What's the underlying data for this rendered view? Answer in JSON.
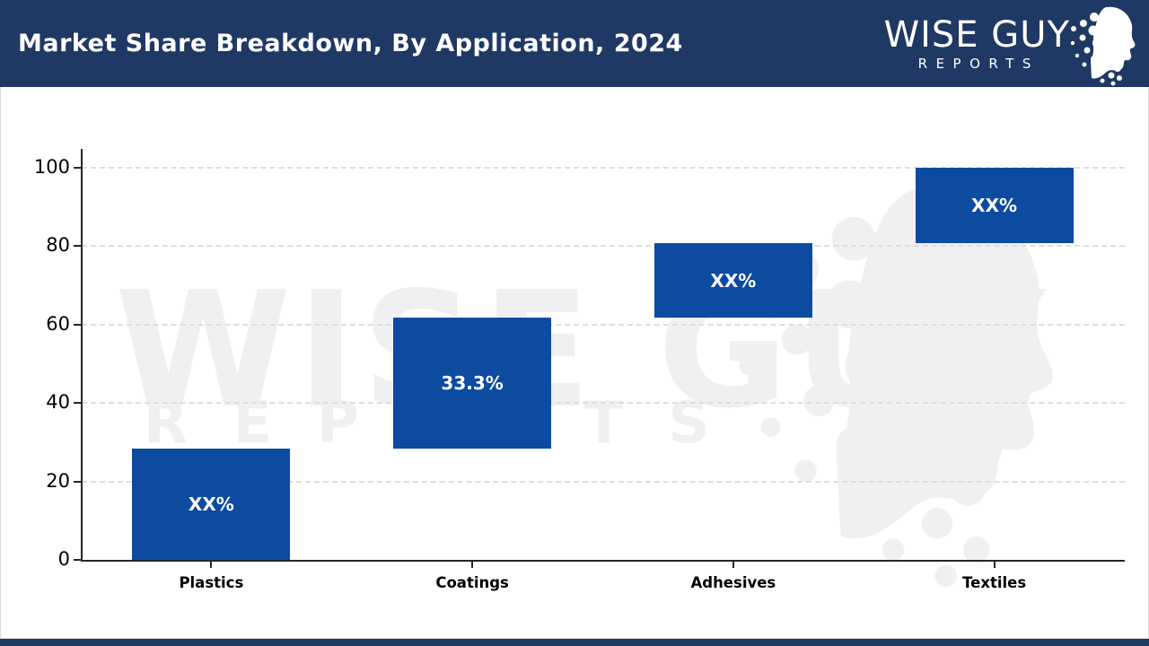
{
  "header": {
    "title": "Market Share Breakdown, By Application, 2024",
    "logo_line1": "WISE GUY",
    "logo_line2": "REPORTS"
  },
  "watermark": {
    "line1": "WISE GUY",
    "line2": "REPORTS"
  },
  "chart_data": {
    "type": "bar",
    "subtype": "floating-waterfall",
    "title": "Market Share Breakdown, By Application, 2024",
    "categories": [
      "Plastics",
      "Coatings",
      "Adhesives",
      "Textiles"
    ],
    "segments": [
      {
        "category": "Plastics",
        "from": 0,
        "to": 28.4,
        "label": "XX%"
      },
      {
        "category": "Coatings",
        "from": 28.4,
        "to": 61.7,
        "label": "33.3%"
      },
      {
        "category": "Adhesives",
        "from": 61.7,
        "to": 80.7,
        "label": "XX%"
      },
      {
        "category": "Textiles",
        "from": 80.7,
        "to": 100,
        "label": "XX%"
      }
    ],
    "xlabel": "",
    "ylabel": "",
    "yticks": [
      0,
      20,
      40,
      60,
      80,
      100
    ],
    "ylim": [
      0,
      105
    ],
    "grid": "horizontal-dashed",
    "legend": "none"
  },
  "colors": {
    "header_bg": "#1f3864",
    "bar": "#0c4ba0",
    "bar_label": "#ffffff",
    "watermark": "#f0f0f2",
    "grid": "#dedede",
    "axis": "#262626"
  }
}
